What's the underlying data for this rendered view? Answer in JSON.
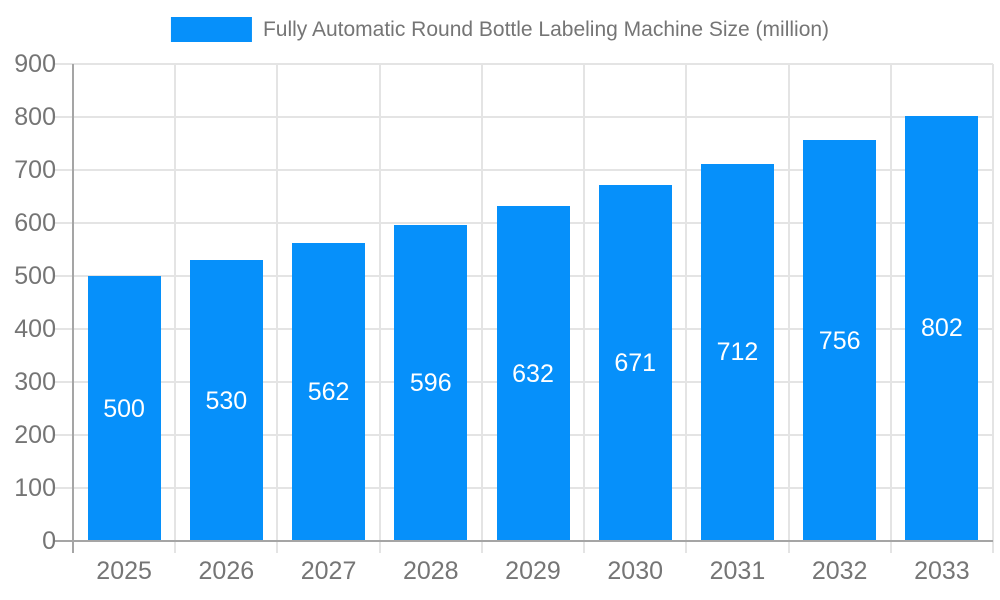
{
  "chart_data": {
    "type": "bar",
    "title": "Fully Automatic Round Bottle Labeling Machine Size (million)",
    "categories": [
      "2025",
      "2026",
      "2027",
      "2028",
      "2029",
      "2030",
      "2031",
      "2032",
      "2033"
    ],
    "values": [
      500,
      530,
      562,
      596,
      632,
      671,
      712,
      756,
      802
    ],
    "xlabel": "",
    "ylabel": "",
    "ylim": [
      0,
      900
    ],
    "y_ticks": [
      0,
      100,
      200,
      300,
      400,
      500,
      600,
      700,
      800,
      900
    ],
    "grid": true,
    "value_label_position": "inside-center",
    "legend": {
      "label": "Fully Automatic Round Bottle Labeling Machine Size (million)",
      "position": "top-center"
    },
    "colors": {
      "bar": "#0690FA",
      "grid": "#E4E4E4",
      "axis": "#A5A5A5",
      "text": "#757575",
      "value_label": "#FFFFFF",
      "background": "#FFFFFF"
    }
  }
}
